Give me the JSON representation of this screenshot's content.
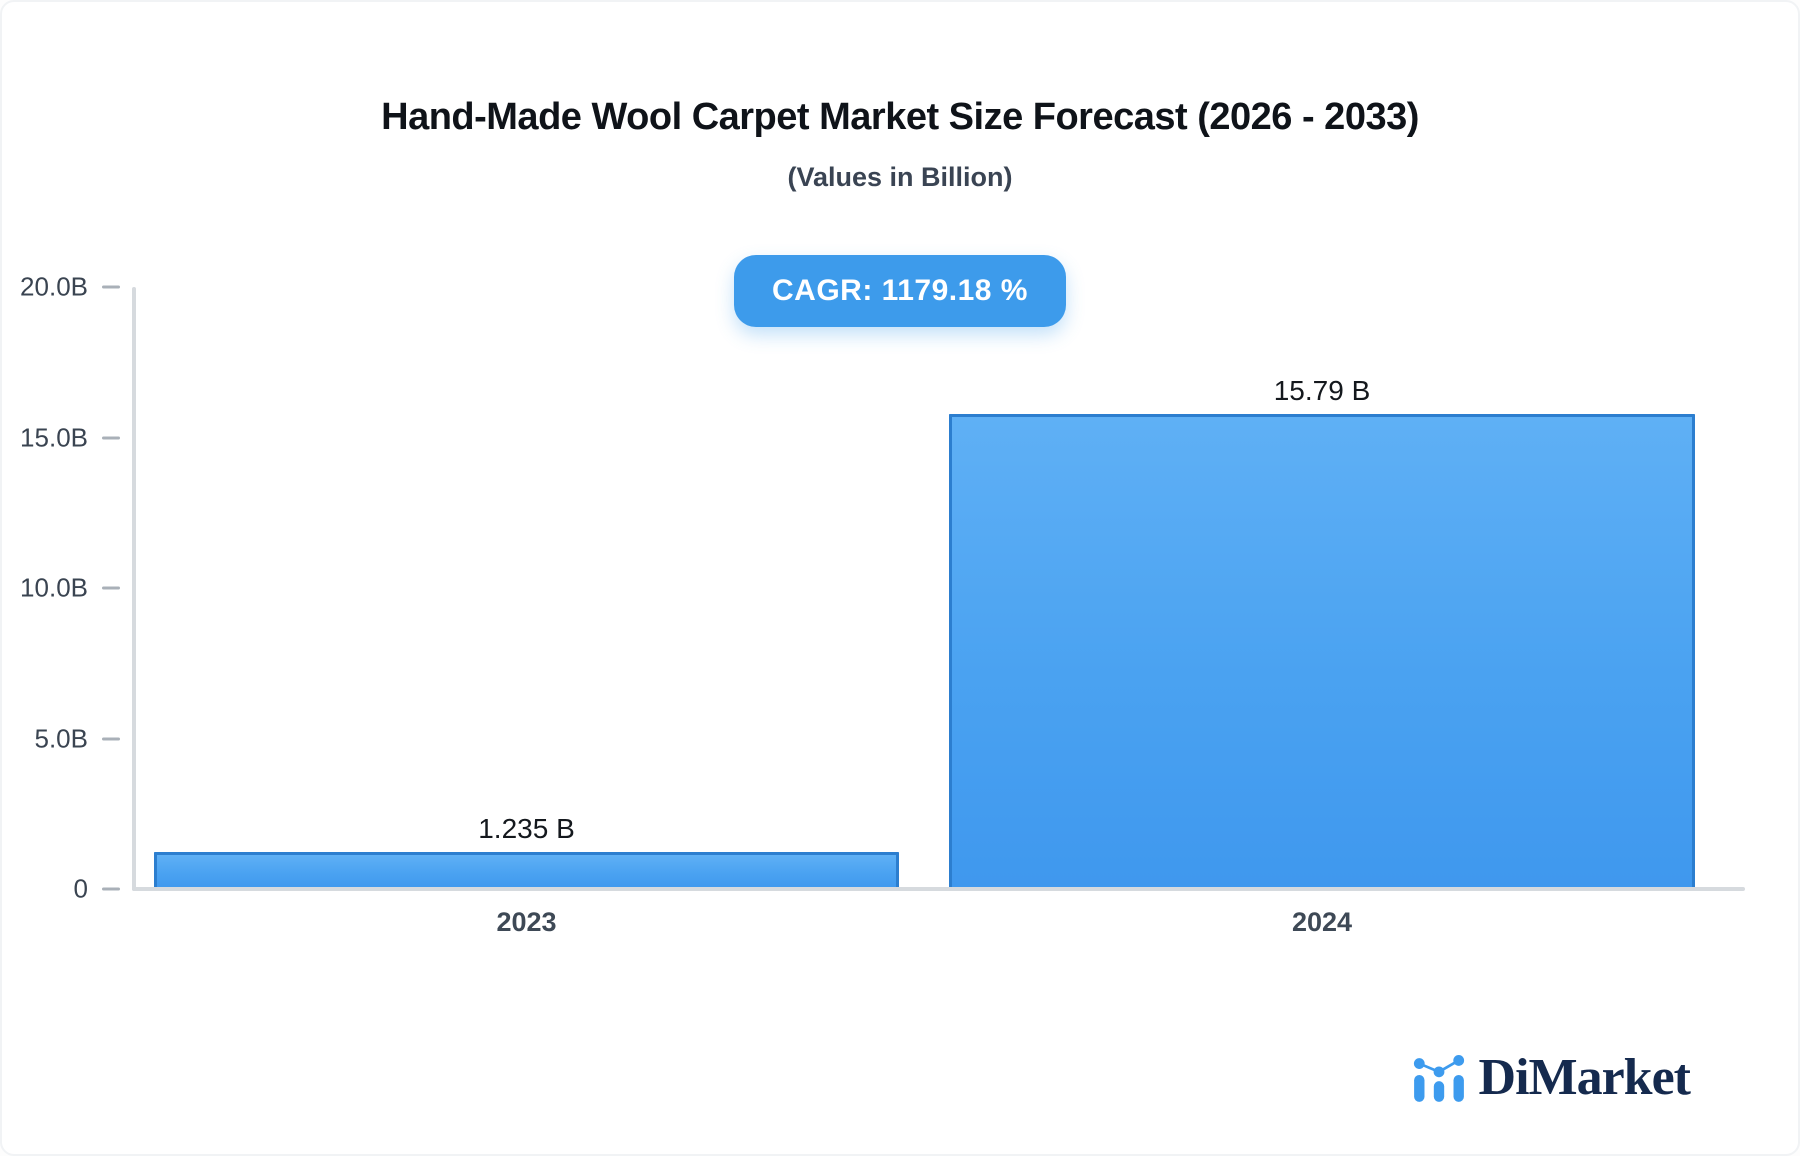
{
  "header": {
    "title": "Hand-Made Wool Carpet Market Size Forecast (2026 - 2033)",
    "subtitle": "(Values in Billion)",
    "cagr_label": "CAGR: 1179.18 %"
  },
  "chart_data": {
    "type": "bar",
    "title": "Hand-Made Wool Carpet Market Size Forecast (2026 - 2033)",
    "subtitle": "(Values in Billion)",
    "categories": [
      "2023",
      "2024"
    ],
    "values": [
      1.235,
      15.79
    ],
    "value_labels": [
      "1.235 B",
      "15.79 B"
    ],
    "yticks": [
      "20.0B",
      "15.0B",
      "10.0B",
      "5.0B",
      "0"
    ],
    "ylim": [
      0,
      20
    ],
    "xlabel": "",
    "ylabel": "",
    "grid": false,
    "legend": false,
    "annotations": [
      {
        "name": "cagr-badge",
        "text": "CAGR: 1179.18 %"
      }
    ],
    "colors": {
      "bar_fill_top": "#5fb0f5",
      "bar_fill_bottom": "#3f98ee",
      "bar_border": "#2c7ecf",
      "badge_background": "#3d9beb",
      "axis_line": "#d6dade",
      "tick_mark": "#a9b0b8"
    }
  },
  "branding": {
    "logo_text": "DiMarket",
    "logo_icon": "bar-chart-dots-logo-icon",
    "logo_text_color": "#152a4e",
    "logo_icon_color": "#3d9bee"
  }
}
